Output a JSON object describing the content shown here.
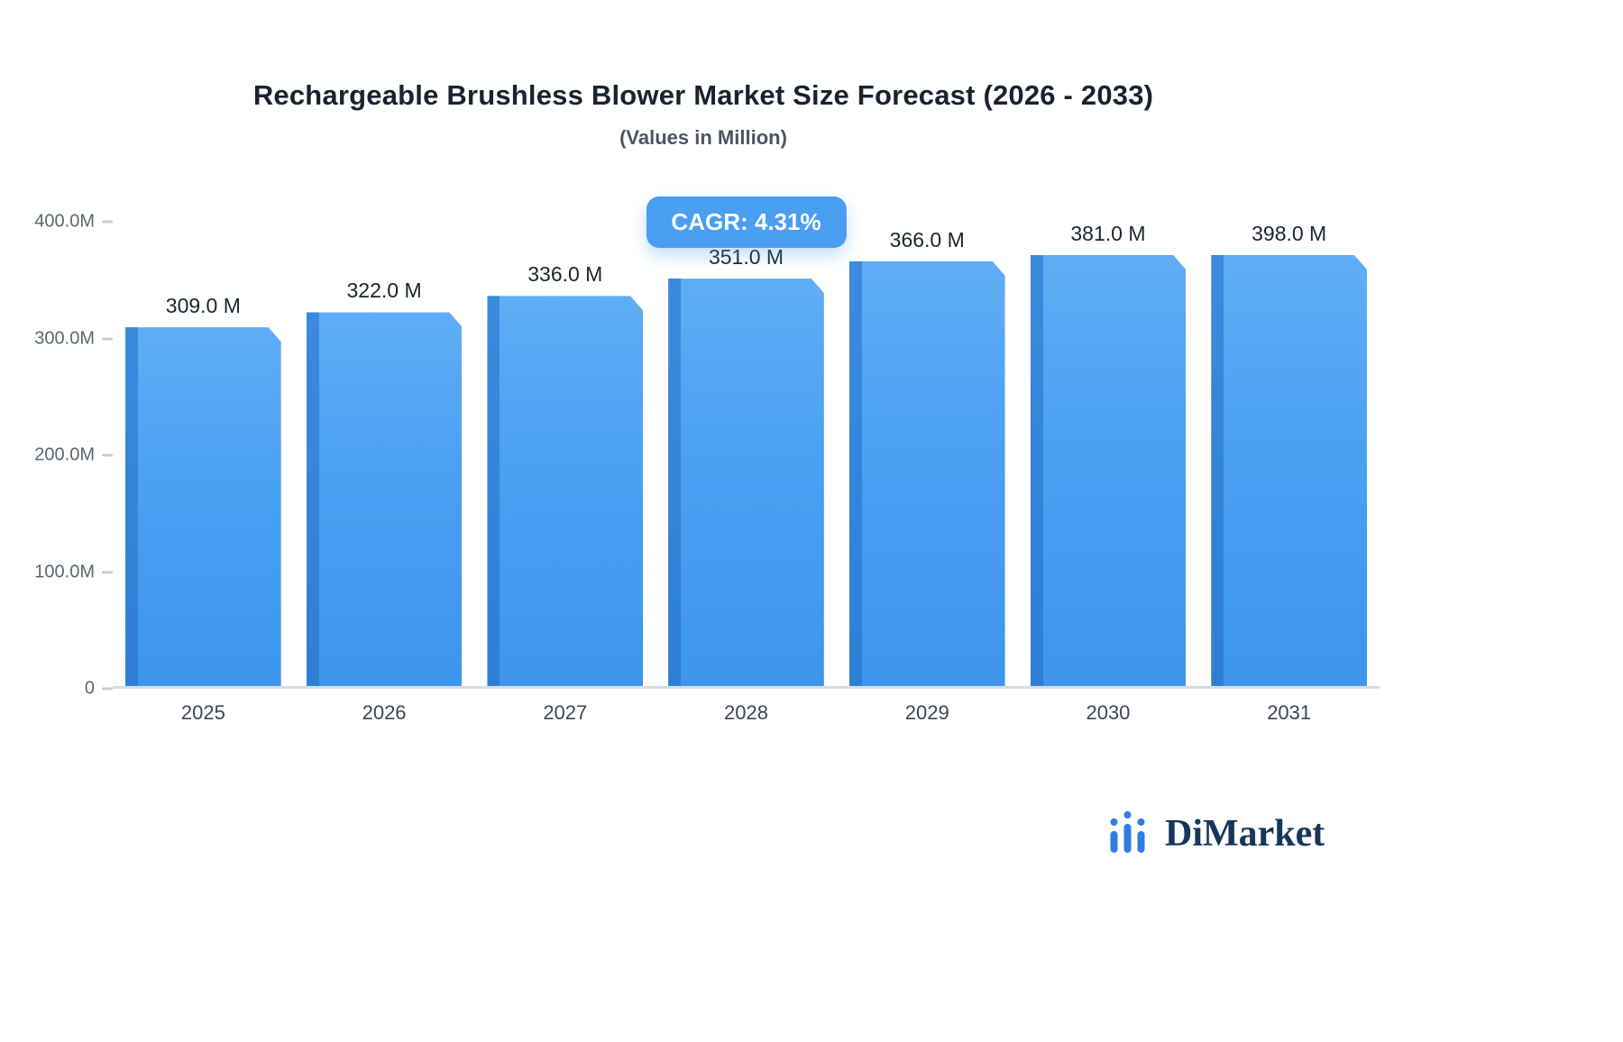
{
  "chart_data": {
    "type": "bar",
    "title": "Rechargeable Brushless Blower Market Size Forecast (2026 - 2033)",
    "subtitle": "(Values in Million)",
    "categories": [
      "2025",
      "2026",
      "2027",
      "2028",
      "2029",
      "2030",
      "2031"
    ],
    "values": [
      309.0,
      322.0,
      336.0,
      351.0,
      366.0,
      381.0,
      398.0
    ],
    "value_labels": [
      "309.0 M",
      "322.0 M",
      "336.0 M",
      "351.0 M",
      "366.0 M",
      "381.0 M",
      "398.0 M"
    ],
    "ylim": [
      0,
      400
    ],
    "y_ticks": [
      {
        "label": "400.0M",
        "value": 400
      },
      {
        "label": "300.0M",
        "value": 300
      },
      {
        "label": "200.0M",
        "value": 200
      },
      {
        "label": "100.0M",
        "value": 100
      },
      {
        "label": "0",
        "value": 0
      }
    ],
    "grid": false,
    "legend": "none",
    "bar_color": "#4aa0f2",
    "bar_edge_color": "#2e7fd4"
  },
  "badge": {
    "label": "CAGR: 4.31%",
    "color": "#4a9ef2"
  },
  "logo": {
    "text": "DiMarket",
    "icon": "bar-chart-dots-icon",
    "color": "#16365c",
    "icon_color": "#2e7de2"
  }
}
